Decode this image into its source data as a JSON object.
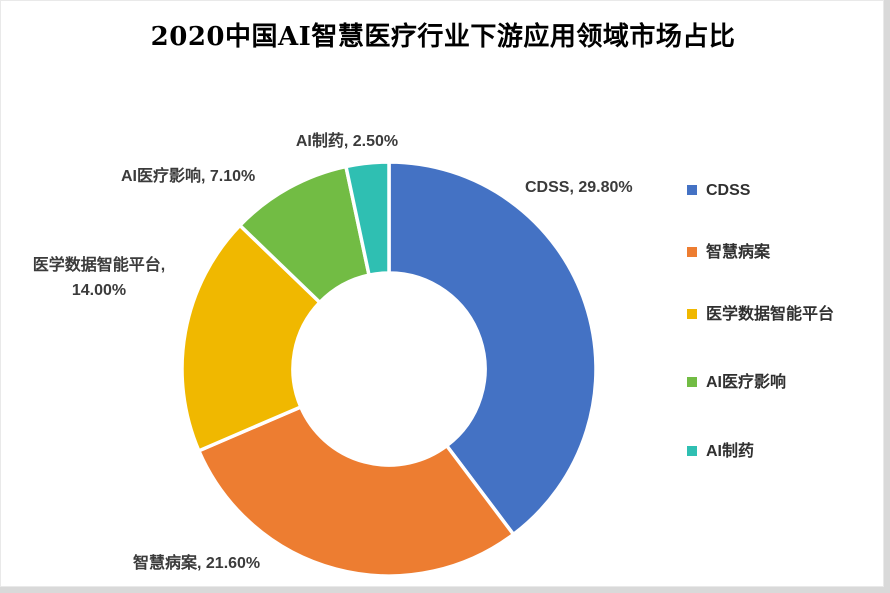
{
  "chart_data": {
    "type": "pie",
    "subtype": "doughnut",
    "title": "2020中国AI智慧医疗行业下游应用领域市场占比",
    "categories": [
      "CDSS",
      "智慧病案",
      "医学数据智能平台",
      "AI医疗影响",
      "AI制药"
    ],
    "values": [
      29.8,
      21.6,
      14.0,
      7.1,
      2.5
    ],
    "value_labels": [
      "29.80%",
      "21.60%",
      "14.00%",
      "7.10%",
      "2.50%"
    ],
    "colors": [
      "#4472c4",
      "#ed7d31",
      "#f0b800",
      "#72bc44",
      "#2fbfb2"
    ],
    "slice_keys": [
      "cdss",
      "smart-medical-record",
      "medical-data-platform",
      "ai-medical-imaging",
      "ai-pharma"
    ],
    "start_angle_deg": 0,
    "direction": "clockwise",
    "inner_radius_ratio": 0.464,
    "legend_position": "right",
    "grid": "off"
  },
  "title_text": "2020中国AI智慧医疗行业下游应用领域市场占比",
  "data_labels": {
    "cdss": "CDSS, 29.80%",
    "smart_record": "智慧病案, 21.60%",
    "platform_line1": "医学数据智能平台,",
    "platform_line2": "14.00%",
    "ai_imaging": "AI医疗影响, 7.10%",
    "ai_pharma": "AI制药, 2.50%"
  },
  "legend": {
    "items": [
      {
        "label": "CDSS",
        "color": "#4472c4"
      },
      {
        "label": "智慧病案",
        "color": "#ed7d31"
      },
      {
        "label": "医学数据智能平台",
        "color": "#f0b800"
      },
      {
        "label": "AI医疗影响",
        "color": "#72bc44"
      },
      {
        "label": "AI制药",
        "color": "#2fbfb2"
      }
    ]
  },
  "frame": {
    "shadow_color": "#d9d9d9",
    "border_color": "#e9e9e9",
    "background": "#ffffff"
  }
}
